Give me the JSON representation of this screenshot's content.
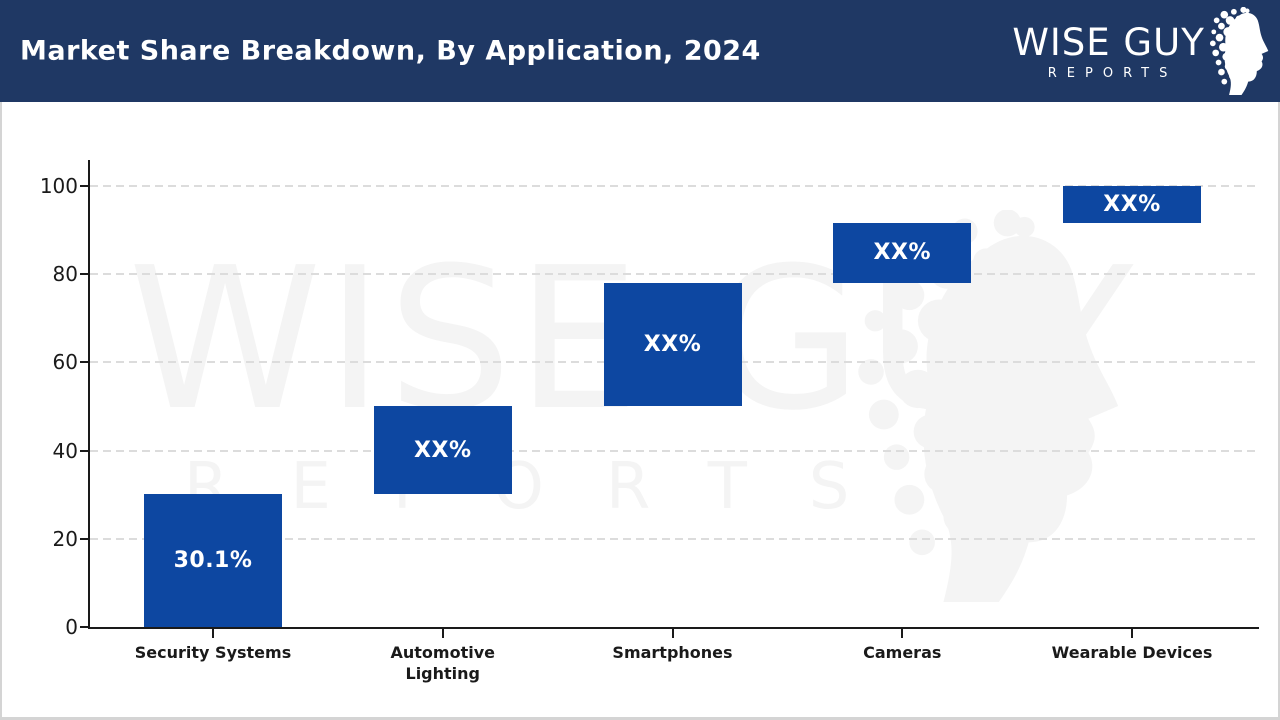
{
  "header": {
    "title": "Market Share Breakdown, By Application, 2024",
    "logo": {
      "primary": "WISE GUY",
      "secondary": "REPORTS"
    }
  },
  "watermark": {
    "primary": "WISE GUY",
    "secondary": "REPORTS"
  },
  "chart_data": {
    "type": "bar",
    "subtype": "waterfall",
    "title": "Market Share Breakdown, By Application, 2024",
    "xlabel": "",
    "ylabel": "",
    "ylim": [
      0,
      100
    ],
    "yticks": [
      0,
      20,
      40,
      60,
      80,
      100
    ],
    "grid": "horizontal-dashed",
    "legend": "none",
    "bar_color": "#0d47a1",
    "bar_label_color": "#ffffff",
    "categories": [
      "Security Systems",
      "Automotive\nLighting",
      "Smartphones",
      "Cameras",
      "Wearable Devices"
    ],
    "segments": [
      {
        "category": "Security Systems",
        "start": 0,
        "end": 30.1,
        "value_label": "30.1%",
        "approx_value": 30.1
      },
      {
        "category": "Automotive Lighting",
        "start": 30.1,
        "end": 50.1,
        "value_label": "XX%",
        "approx_value": 20.0
      },
      {
        "category": "Smartphones",
        "start": 50.1,
        "end": 78.1,
        "value_label": "XX%",
        "approx_value": 28.0
      },
      {
        "category": "Cameras",
        "start": 78.1,
        "end": 91.6,
        "value_label": "XX%",
        "approx_value": 13.5
      },
      {
        "category": "Wearable Devices",
        "start": 91.6,
        "end": 100.0,
        "value_label": "XX%",
        "approx_value": 8.4
      }
    ]
  },
  "colors": {
    "header_bg": "#1f3864",
    "bar": "#0d47a1",
    "grid": "#dcdcdc",
    "axis": "#1a1a1a",
    "watermark": "#f4f4f4",
    "page_border": "#d4d4d4"
  }
}
